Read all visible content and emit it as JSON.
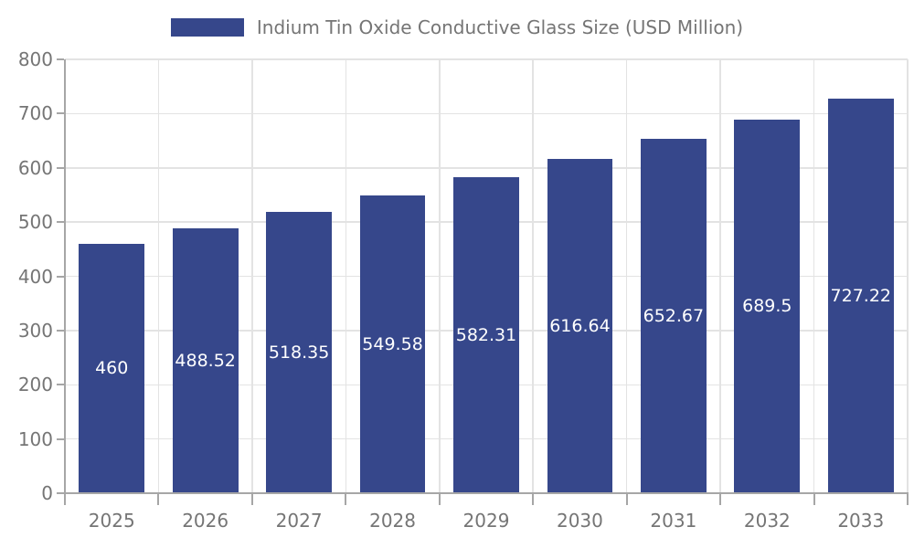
{
  "legend": {
    "label": "Indium Tin Oxide Conductive Glass Size (USD Million)"
  },
  "chart_data": {
    "type": "bar",
    "title": "Indium Tin Oxide Conductive Glass Size (USD Million)",
    "categories": [
      "2025",
      "2026",
      "2027",
      "2028",
      "2029",
      "2030",
      "2031",
      "2032",
      "2033"
    ],
    "values": [
      460,
      488.52,
      518.35,
      549.58,
      582.31,
      616.64,
      652.67,
      689.5,
      727.22
    ],
    "value_labels": [
      "460",
      "488.52",
      "518.35",
      "549.58",
      "582.31",
      "616.64",
      "652.67",
      "689.5",
      "727.22"
    ],
    "xlabel": "",
    "ylabel": "",
    "ylim": [
      0,
      800
    ],
    "yticks": [
      0,
      100,
      200,
      300,
      400,
      500,
      600,
      700,
      800
    ],
    "grid": true,
    "legend_position": "top-center",
    "bar_color": "#36478b",
    "value_label_color": "#ffffff",
    "axis_text_color": "#757575",
    "grid_color": "#e3e3e3",
    "axis_line_color": "#a6a6a6",
    "background_color": "#ffffff"
  }
}
